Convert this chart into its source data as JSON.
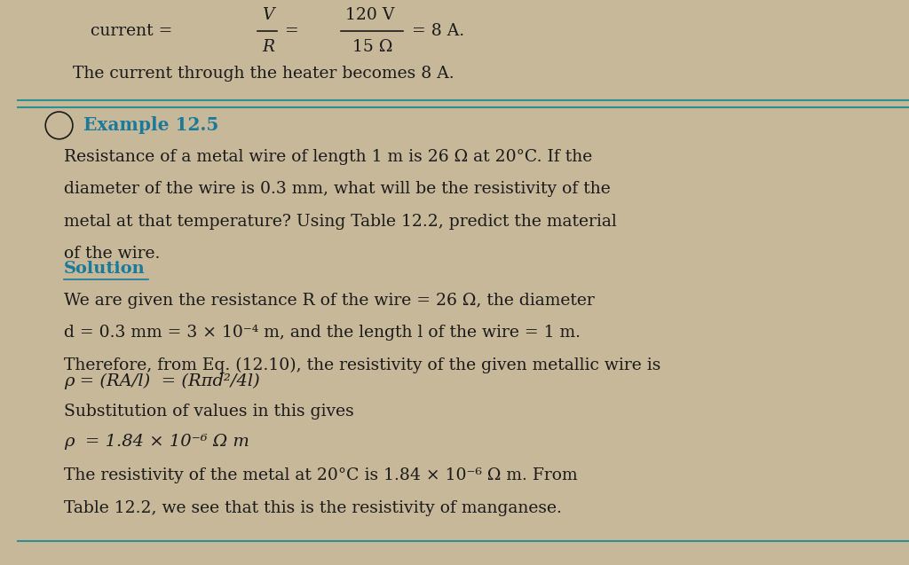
{
  "background_color": "#c8b89a",
  "text_color": "#1a1a1a",
  "cyan_color": "#1a7a9a",
  "teal_line_color": "#2a9090",
  "figsize": [
    10.24,
    6.37
  ],
  "dpi": 100,
  "line2": "The current through the heater becomes 8 A.",
  "example_title": "Example 12.5",
  "para1_lines": [
    "Resistance of a metal wire of length 1 m is 26 Ω at 20°C. If the",
    "diameter of the wire is 0.3 mm, what will be the resistivity of the",
    "metal at that temperature? Using Table 12.2, predict the material",
    "of the wire."
  ],
  "solution_label": "Solution",
  "para2_lines": [
    "We are given the resistance R of the wire = 26 Ω, the diameter",
    "d = 0.3 mm = 3 × 10⁻⁴ m, and the length l of the wire = 1 m.",
    "Therefore, from Eq. (12.10), the resistivity of the given metallic wire is"
  ],
  "formula1": "ρ = (RA/l)  = (Rπd²/4l)",
  "sub_text": "Substitution of values in this gives",
  "formula2": "ρ  = 1.84 × 10⁻⁶ Ω m",
  "para3_lines": [
    "The resistivity of the metal at 20°C is 1.84 × 10⁻⁶ Ω m. From",
    "Table 12.2, we see that this is the resistivity of manganese."
  ]
}
